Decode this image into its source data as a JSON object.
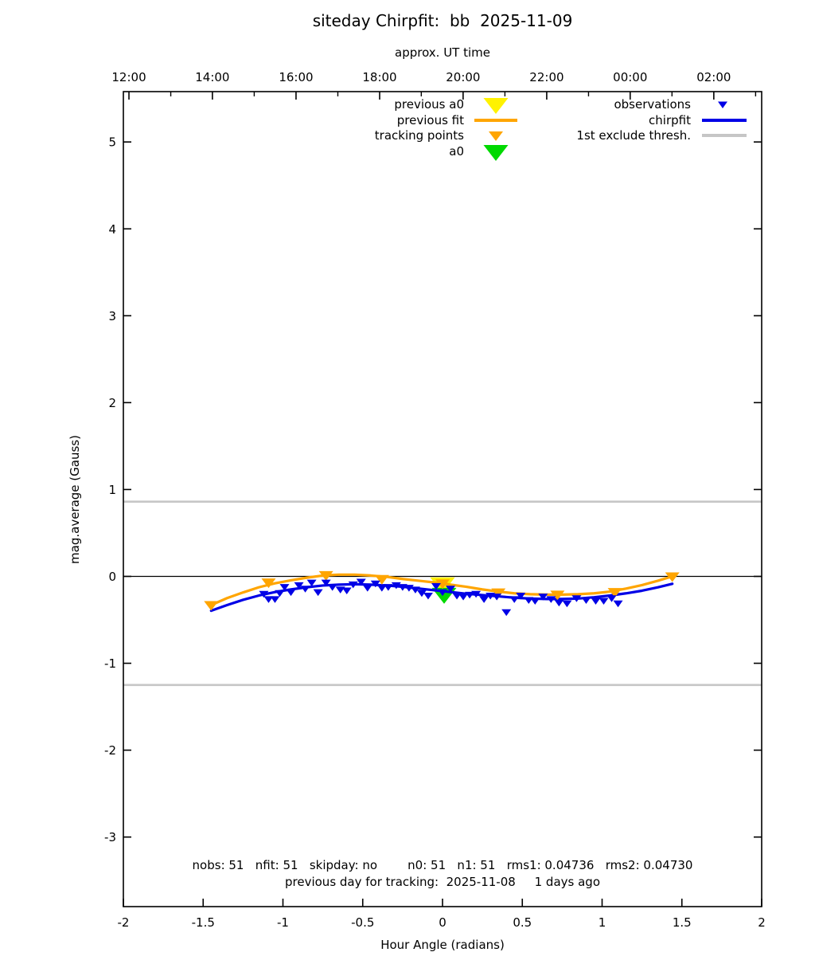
{
  "title": "siteday Chirpfit:  bb  2025-11-09",
  "top_axis_label": "approx. UT time",
  "ylabel": "mag.average (Gauss)",
  "xlabel": "Hour Angle (radians)",
  "stats_line1": "nobs: 51   nfit: 51   skipday: no        n0: 51   n1: 51   rms1: 0.04736   rms2: 0.04730",
  "stats_line2": "previous day for tracking:  2025-11-08     1 days ago",
  "colors": {
    "orange": "#ffa500",
    "blue": "#0000e6",
    "yellow": "#fff200",
    "green": "#00d900",
    "gray": "#c6c6c6",
    "black": "#000000"
  },
  "legend": {
    "left": [
      {
        "label": "previous a0",
        "symbol": "triangle-large",
        "color": "yellow"
      },
      {
        "label": "previous fit",
        "symbol": "line",
        "color": "orange"
      },
      {
        "label": "tracking points",
        "symbol": "triangle-medium",
        "color": "orange"
      },
      {
        "label": "a0",
        "symbol": "triangle-large",
        "color": "green"
      }
    ],
    "right": [
      {
        "label": "observations",
        "symbol": "triangle-small",
        "color": "blue"
      },
      {
        "label": "chirpfit",
        "symbol": "line",
        "color": "blue"
      },
      {
        "label": "1st exclude thresh.",
        "symbol": "line",
        "color": "gray"
      }
    ]
  },
  "chart_data": {
    "type": "scatter",
    "title": "siteday Chirpfit:  bb  2025-11-09",
    "xlabel": "Hour Angle (radians)",
    "ylabel": "mag.average (Gauss)",
    "x_axis": {
      "range": [
        -2,
        2
      ],
      "ticks": [
        -2,
        -1.5,
        -1,
        -0.5,
        0,
        0.5,
        1,
        1.5,
        2
      ]
    },
    "x2_axis": {
      "label": "approx. UT time",
      "major_ticks": [
        {
          "label": "12:00",
          "ha": -1.965
        },
        {
          "label": "14:00",
          "ha": -1.442
        },
        {
          "label": "16:00",
          "ha": -0.918
        },
        {
          "label": "18:00",
          "ha": -0.394
        },
        {
          "label": "20:00",
          "ha": 0.129
        },
        {
          "label": "22:00",
          "ha": 0.653
        },
        {
          "label": "00:00",
          "ha": 1.176
        },
        {
          "label": "02:00",
          "ha": 1.7
        }
      ],
      "minor_ticks_ha": [
        -1.703,
        -1.18,
        -0.656,
        -0.133,
        0.391,
        0.915,
        1.438,
        1.962
      ]
    },
    "y_axis": {
      "range": [
        -3.8,
        5.58
      ],
      "ticks": [
        5,
        4,
        3,
        2,
        1,
        0,
        -1,
        -2,
        -3
      ]
    },
    "zero_line_y": 0,
    "exclude_thresholds": [
      0.86,
      -1.25
    ],
    "series": [
      {
        "name": "previous a0",
        "type": "marker",
        "marker": "triangle-large",
        "color": "yellow",
        "z": 1,
        "points": [
          [
            0.0,
            -0.085
          ]
        ]
      },
      {
        "name": "a0",
        "type": "marker",
        "marker": "triangle-large",
        "color": "green",
        "z": 2,
        "points": [
          [
            0.01,
            -0.205
          ]
        ]
      },
      {
        "name": "previous fit",
        "type": "line",
        "color": "orange",
        "z": 3,
        "points": [
          [
            -1.45,
            -0.33
          ],
          [
            -1.35,
            -0.25
          ],
          [
            -1.25,
            -0.185
          ],
          [
            -1.15,
            -0.125
          ],
          [
            -1.05,
            -0.08
          ],
          [
            -0.95,
            -0.045
          ],
          [
            -0.85,
            -0.015
          ],
          [
            -0.75,
            0.01
          ],
          [
            -0.65,
            0.02
          ],
          [
            -0.55,
            0.02
          ],
          [
            -0.45,
            0.01
          ],
          [
            -0.35,
            -0.005
          ],
          [
            -0.25,
            -0.03
          ],
          [
            -0.15,
            -0.05
          ],
          [
            -0.05,
            -0.07
          ],
          [
            0.05,
            -0.095
          ],
          [
            0.15,
            -0.12
          ],
          [
            0.25,
            -0.15
          ],
          [
            0.35,
            -0.175
          ],
          [
            0.45,
            -0.195
          ],
          [
            0.55,
            -0.205
          ],
          [
            0.65,
            -0.21
          ],
          [
            0.75,
            -0.21
          ],
          [
            0.85,
            -0.205
          ],
          [
            0.95,
            -0.195
          ],
          [
            1.05,
            -0.175
          ],
          [
            1.15,
            -0.14
          ],
          [
            1.25,
            -0.1
          ],
          [
            1.35,
            -0.05
          ],
          [
            1.44,
            0.0
          ]
        ]
      },
      {
        "name": "chirpfit",
        "type": "line",
        "color": "blue",
        "z": 4,
        "points": [
          [
            -1.45,
            -0.395
          ],
          [
            -1.35,
            -0.33
          ],
          [
            -1.25,
            -0.27
          ],
          [
            -1.15,
            -0.22
          ],
          [
            -1.05,
            -0.18
          ],
          [
            -0.95,
            -0.15
          ],
          [
            -0.85,
            -0.125
          ],
          [
            -0.75,
            -0.105
          ],
          [
            -0.65,
            -0.095
          ],
          [
            -0.55,
            -0.09
          ],
          [
            -0.45,
            -0.095
          ],
          [
            -0.35,
            -0.105
          ],
          [
            -0.25,
            -0.12
          ],
          [
            -0.15,
            -0.14
          ],
          [
            -0.05,
            -0.16
          ],
          [
            0.05,
            -0.18
          ],
          [
            0.15,
            -0.2
          ],
          [
            0.25,
            -0.215
          ],
          [
            0.35,
            -0.23
          ],
          [
            0.45,
            -0.245
          ],
          [
            0.55,
            -0.255
          ],
          [
            0.65,
            -0.26
          ],
          [
            0.75,
            -0.26
          ],
          [
            0.85,
            -0.255
          ],
          [
            0.95,
            -0.24
          ],
          [
            1.05,
            -0.22
          ],
          [
            1.15,
            -0.195
          ],
          [
            1.25,
            -0.165
          ],
          [
            1.35,
            -0.125
          ],
          [
            1.44,
            -0.085
          ]
        ]
      },
      {
        "name": "tracking points",
        "type": "marker",
        "marker": "triangle-medium",
        "color": "orange",
        "z": 5,
        "points": [
          [
            -1.45,
            -0.33
          ],
          [
            -1.09,
            -0.07
          ],
          [
            -0.73,
            0.015
          ],
          [
            -0.38,
            -0.03
          ],
          [
            0.0,
            -0.08
          ],
          [
            0.35,
            -0.185
          ],
          [
            0.72,
            -0.21
          ],
          [
            1.08,
            -0.18
          ],
          [
            1.44,
            0.0
          ]
        ]
      },
      {
        "name": "observations",
        "type": "marker",
        "marker": "triangle-small",
        "color": "blue",
        "z": 6,
        "points": [
          [
            -1.12,
            -0.2
          ],
          [
            -1.09,
            -0.26
          ],
          [
            -1.05,
            -0.26
          ],
          [
            -1.02,
            -0.19
          ],
          [
            -0.99,
            -0.12
          ],
          [
            -0.95,
            -0.18
          ],
          [
            -0.9,
            -0.1
          ],
          [
            -0.86,
            -0.14
          ],
          [
            -0.82,
            -0.07
          ],
          [
            -0.78,
            -0.18
          ],
          [
            -0.73,
            -0.07
          ],
          [
            -0.69,
            -0.12
          ],
          [
            -0.64,
            -0.15
          ],
          [
            -0.6,
            -0.16
          ],
          [
            -0.56,
            -0.09
          ],
          [
            -0.51,
            -0.06
          ],
          [
            -0.47,
            -0.13
          ],
          [
            -0.42,
            -0.08
          ],
          [
            -0.38,
            -0.13
          ],
          [
            -0.34,
            -0.12
          ],
          [
            -0.29,
            -0.1
          ],
          [
            -0.25,
            -0.12
          ],
          [
            -0.21,
            -0.13
          ],
          [
            -0.17,
            -0.15
          ],
          [
            -0.13,
            -0.19
          ],
          [
            -0.09,
            -0.22
          ],
          [
            -0.04,
            -0.11
          ],
          [
            0.0,
            -0.18
          ],
          [
            0.05,
            -0.14
          ],
          [
            0.09,
            -0.22
          ],
          [
            0.13,
            -0.23
          ],
          [
            0.17,
            -0.21
          ],
          [
            0.21,
            -0.2
          ],
          [
            0.26,
            -0.26
          ],
          [
            0.3,
            -0.22
          ],
          [
            0.34,
            -0.23
          ],
          [
            0.4,
            -0.41
          ],
          [
            0.45,
            -0.26
          ],
          [
            0.49,
            -0.22
          ],
          [
            0.54,
            -0.27
          ],
          [
            0.58,
            -0.28
          ],
          [
            0.63,
            -0.23
          ],
          [
            0.68,
            -0.26
          ],
          [
            0.73,
            -0.3
          ],
          [
            0.78,
            -0.31
          ],
          [
            0.84,
            -0.25
          ],
          [
            0.9,
            -0.27
          ],
          [
            0.96,
            -0.28
          ],
          [
            1.01,
            -0.28
          ],
          [
            1.06,
            -0.25
          ],
          [
            1.1,
            -0.31
          ]
        ]
      }
    ],
    "stats": {
      "line1": "nobs: 51   nfit: 51   skipday: no        n0: 51   n1: 51   rms1: 0.04736   rms2: 0.04730",
      "line2": "previous day for tracking:  2025-11-08     1 days ago"
    },
    "legend_position": "top-inside"
  }
}
